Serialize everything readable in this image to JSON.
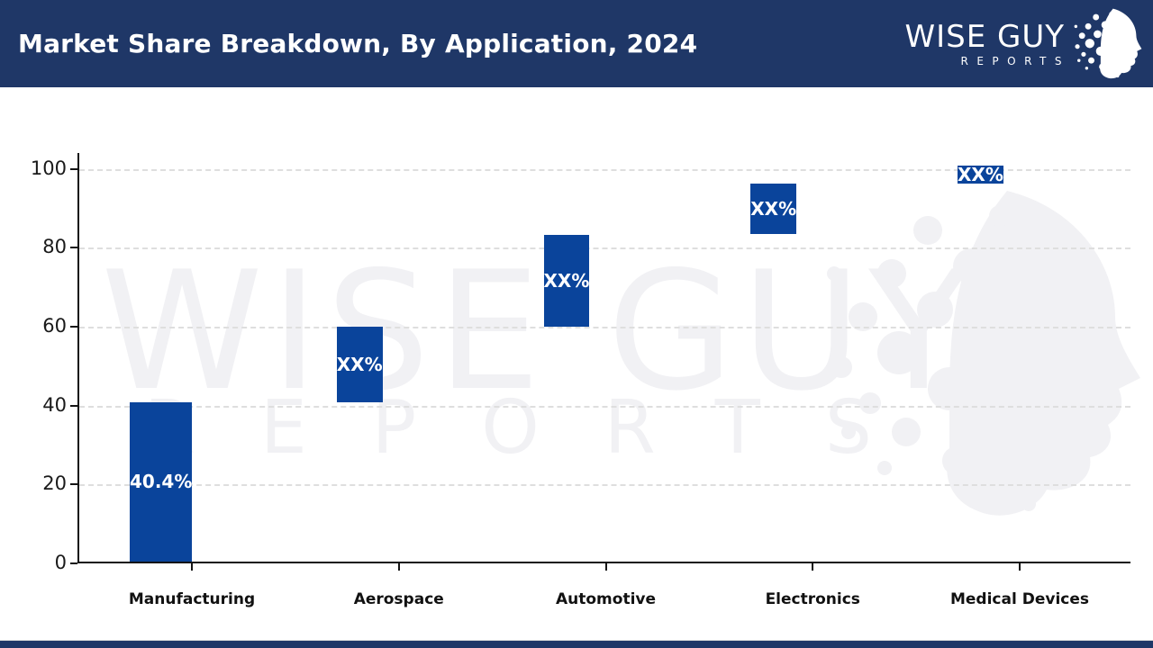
{
  "header": {
    "title": "Market Share Breakdown, By Application, 2024",
    "logo": {
      "line1": "WISE GUY",
      "line2": "REPORTS"
    }
  },
  "watermark": {
    "line1": "WISE GUY",
    "line2": "REPORTS"
  },
  "colors": {
    "header_bg": "#1f3767",
    "footer_bg": "#1f3767",
    "bar": "#0a449b",
    "bar_label": "#ffffff",
    "gridline": "#dedede",
    "axis": "#141414",
    "watermark": "#f1f1f4"
  },
  "chart_data": {
    "type": "bar",
    "subtype": "waterfall",
    "title": "Market Share Breakdown, By Application, 2024",
    "categories": [
      "Manufacturing",
      "Aerospace",
      "Automotive",
      "Electronics",
      "Medical Devices"
    ],
    "segments": [
      {
        "category": "Manufacturing",
        "start": 0,
        "end": 40.4,
        "label": "40.4%"
      },
      {
        "category": "Aerospace",
        "start": 40.4,
        "end": 59.6,
        "label": "XX%"
      },
      {
        "category": "Automotive",
        "start": 59.6,
        "end": 82.9,
        "label": "XX%"
      },
      {
        "category": "Electronics",
        "start": 82.9,
        "end": 95.8,
        "label": "XX%"
      },
      {
        "category": "Medical Devices",
        "start": 95.8,
        "end": 100.4,
        "label": "XX%"
      }
    ],
    "y_ticks": [
      0,
      20,
      40,
      60,
      80,
      100
    ],
    "ylim": [
      0,
      104
    ],
    "xlabel": "",
    "ylabel": "",
    "grid": "dashed-horizontal",
    "legend": "none"
  }
}
